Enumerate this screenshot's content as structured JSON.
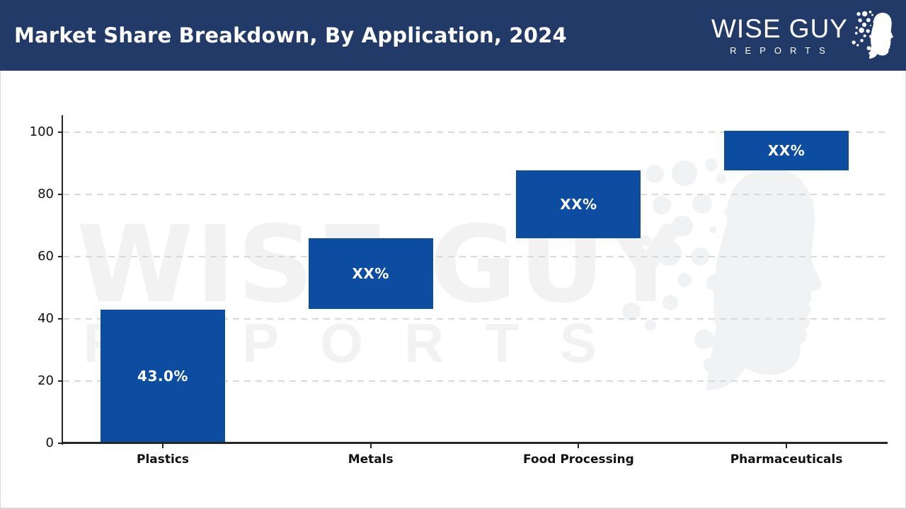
{
  "header": {
    "title": "Market Share Breakdown, By Application, 2024",
    "bg_color": "#213a68",
    "logo": {
      "line1": "WISE GUY",
      "line2": "REPORTS"
    }
  },
  "watermark": {
    "line1": "WISE GUY",
    "line2": "REPORTS"
  },
  "chart_data": {
    "type": "bar",
    "subtype": "waterfall",
    "title": "Market Share Breakdown, By Application, 2024",
    "categories": [
      "Plastics",
      "Metals",
      "Food Processing",
      "Pharmaceuticals"
    ],
    "segments": [
      {
        "category": "Plastics",
        "start": 0,
        "end": 43.0,
        "label": "43.0%"
      },
      {
        "category": "Metals",
        "start": 43.1,
        "end": 65.9,
        "label": "XX%"
      },
      {
        "category": "Food Processing",
        "start": 65.9,
        "end": 87.8,
        "label": "XX%"
      },
      {
        "category": "Pharmaceuticals",
        "start": 87.8,
        "end": 100.4,
        "label": "XX%"
      }
    ],
    "ylim": [
      0,
      105.5
    ],
    "yticks": [
      0,
      20,
      40,
      60,
      80,
      100
    ],
    "grid": "horizontal-dashed",
    "legend": "none",
    "bar_color": "#0c4da2",
    "bar_label_color": "#ffffff",
    "axis_color": "#262626",
    "grid_color": "#d9d9d9",
    "tick_label_color": "#111111"
  }
}
